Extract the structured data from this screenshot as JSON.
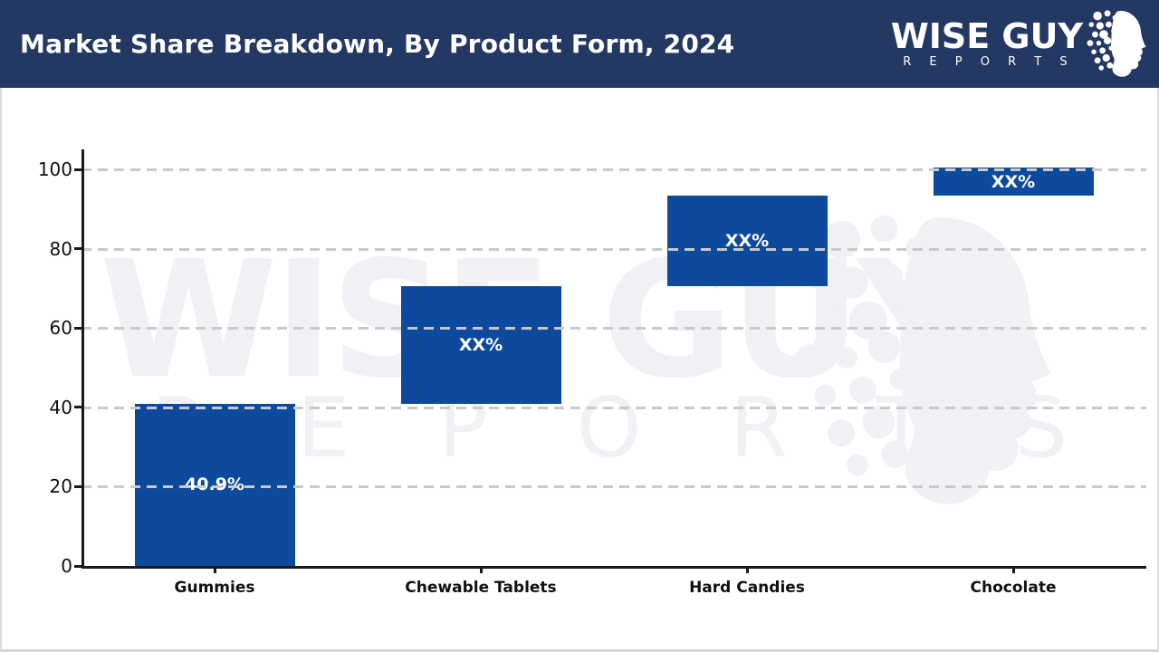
{
  "header": {
    "title": "Market Share Breakdown, By Product Form, 2024"
  },
  "brand": {
    "name": "WISE GUY",
    "sub": "R E P O R T S"
  },
  "colors": {
    "header_bg": "#233862",
    "bar_fill": "#0d4a9e",
    "watermark": "#eff1f4",
    "gridline": "#c9c9c9",
    "axis": "#1a1a1a",
    "title_text": "#ffffff",
    "bar_label_text": "#ffffff"
  },
  "chart_data": {
    "type": "bar",
    "subtype": "waterfall",
    "title": "Market Share Breakdown, By Product Form, 2024",
    "categories": [
      "Gummies",
      "Chewable Tablets",
      "Hard Candies",
      "Chocolate"
    ],
    "bars": [
      {
        "category": "Gummies",
        "start": 0,
        "end": 40.9,
        "label": "40.9%"
      },
      {
        "category": "Chewable Tablets",
        "start": 40.9,
        "end": 70.5,
        "label": "XX%"
      },
      {
        "category": "Hard Candies",
        "start": 70.5,
        "end": 93.3,
        "label": "XX%"
      },
      {
        "category": "Chocolate",
        "start": 93.3,
        "end": 100.4,
        "label": "XX%"
      }
    ],
    "yticks": [
      0,
      20,
      40,
      60,
      80,
      100
    ],
    "ylim": [
      0,
      105
    ],
    "xlabel": "",
    "ylabel": "",
    "grid": "dashed-horizontal",
    "legend": "none"
  }
}
